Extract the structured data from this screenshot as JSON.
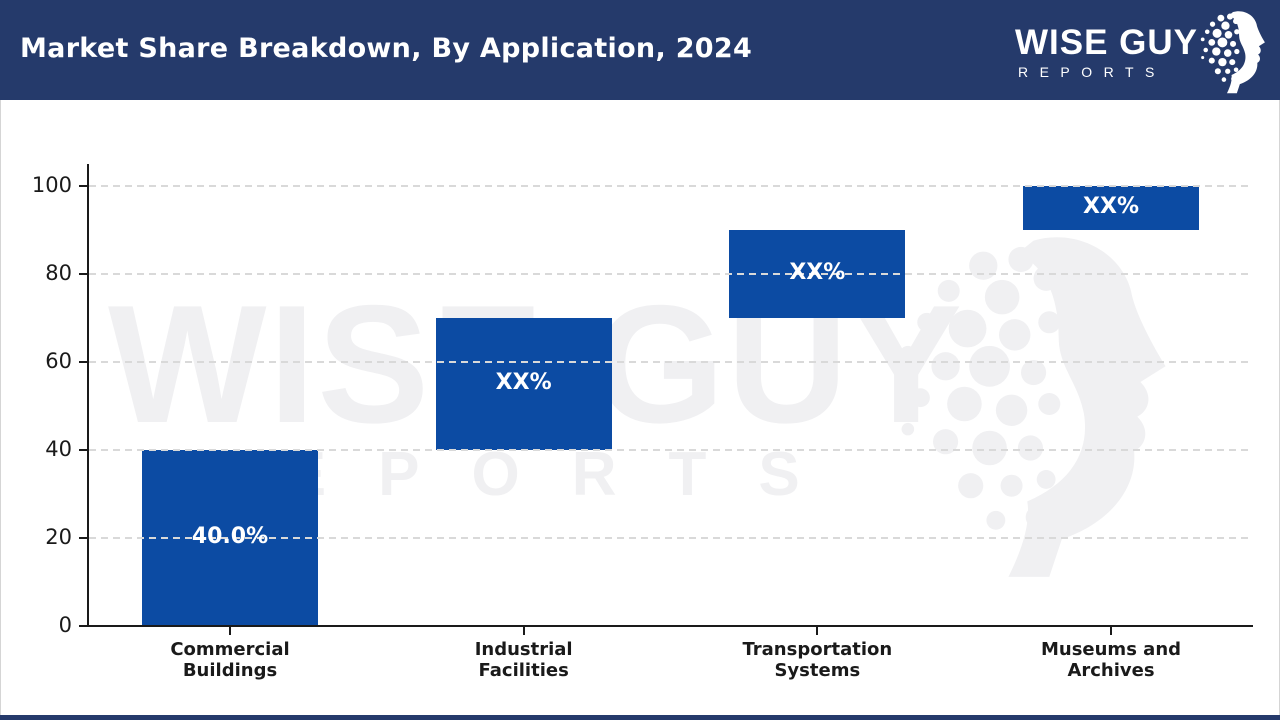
{
  "header": {
    "title": "Market Share Breakdown, By Application, 2024",
    "logo": {
      "wordmark": "WISE GUY",
      "subtext": "REPORTS",
      "face_icon": "dotted-head-profile"
    }
  },
  "watermark": {
    "line1": "WISE GUY",
    "line2": "REPORTS",
    "face_icon": "dotted-head-profile"
  },
  "chart_data": {
    "type": "bar",
    "subtype": "waterfall",
    "title": "Market Share Breakdown, By Application, 2024",
    "categories": [
      "Commercial Buildings",
      "Industrial Facilities",
      "Transportation Systems",
      "Museums and Archives"
    ],
    "category_label_lines": [
      [
        "Commercial",
        "Buildings"
      ],
      [
        "Industrial",
        "Facilities"
      ],
      [
        "Transportation",
        "Systems"
      ],
      [
        "Museums and",
        "Archives"
      ]
    ],
    "segments": [
      {
        "category": "Commercial Buildings",
        "start": 0,
        "end": 40,
        "value": 40,
        "label": "40.0%"
      },
      {
        "category": "Industrial Facilities",
        "start": 40,
        "end": 70,
        "value": 30,
        "label": "XX%"
      },
      {
        "category": "Transportation Systems",
        "start": 70,
        "end": 90,
        "value": 20,
        "label": "XX%"
      },
      {
        "category": "Museums and Archives",
        "start": 90,
        "end": 100,
        "value": 10,
        "label": "XX%"
      }
    ],
    "xlabel": "",
    "ylabel": "",
    "ylim": [
      0,
      105
    ],
    "yticks": [
      0,
      20,
      40,
      60,
      80,
      100
    ],
    "grid": "horizontal-dashed",
    "legend": "none"
  },
  "colors": {
    "header_bg": "#253a6b",
    "footer_bg": "#253a6b",
    "bar": "#0c4ba3",
    "bar_label": "#ffffff",
    "grid": "#d9d9d9",
    "axis": "#1a1a1a",
    "tick_text": "#1a1a1a",
    "watermark": "#f0f0f2",
    "page_bg": "#ffffff"
  }
}
